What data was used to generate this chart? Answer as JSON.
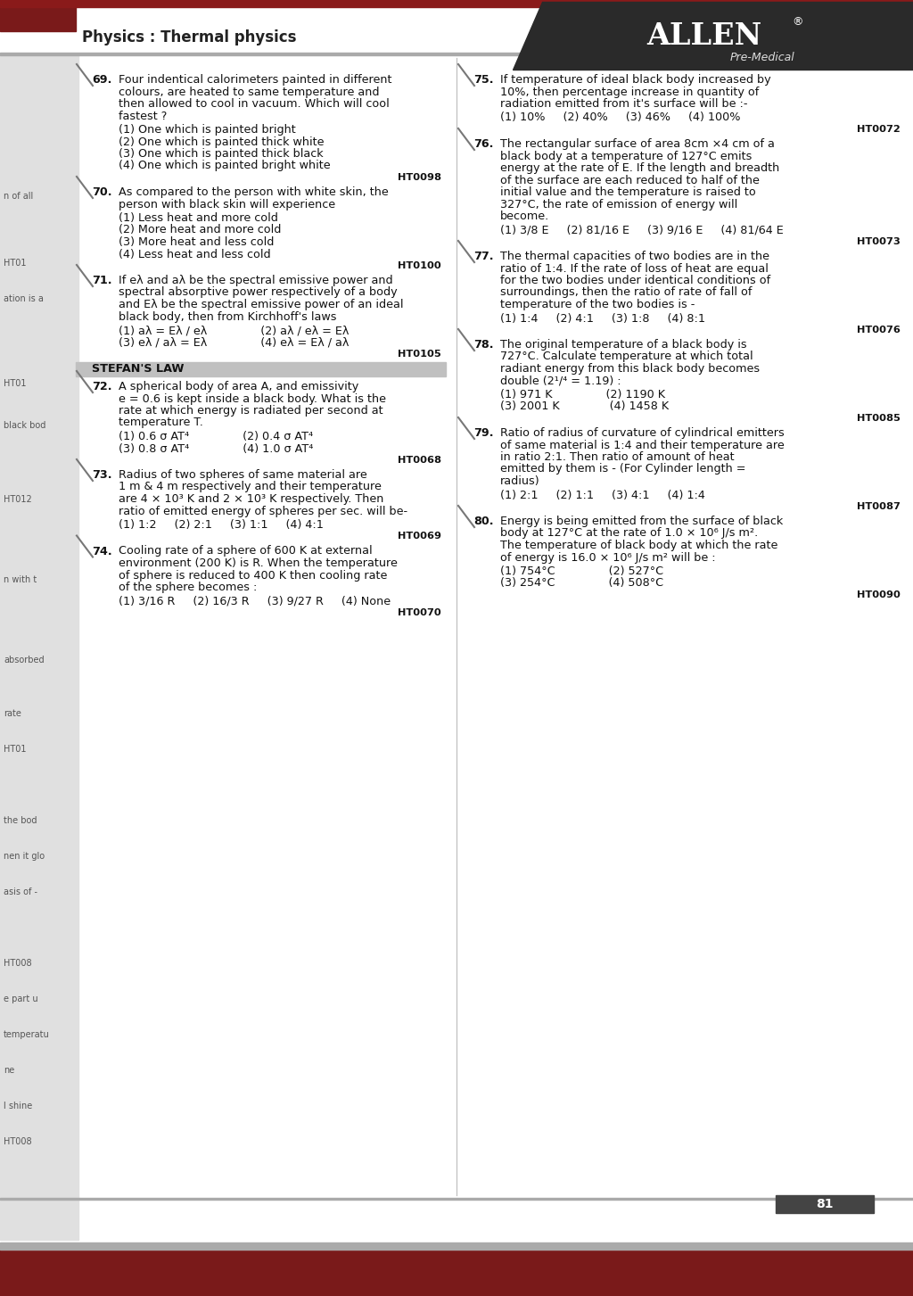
{
  "title": "Physics : Thermal physics",
  "allen_text": "ALLEN",
  "pre_medical": "Pre-Medical",
  "page_number": "81",
  "stefan_law_label": "STEFAN'S LAW",
  "q69_lines": [
    "Four indentical calorimeters painted in different",
    "colours, are heated to same temperature and",
    "then allowed to cool in vacuum. Which will cool",
    "fastest ?"
  ],
  "q69_opts": [
    "(1) One which is painted bright",
    "(2) One which is painted thick white",
    "(3) One which is painted thick black",
    "(4) One which is painted bright white"
  ],
  "q69_code": "HT0098",
  "q70_lines": [
    "As compared to the person with white skin, the",
    "person with black skin will experience"
  ],
  "q70_opts": [
    "(1) Less heat and more cold",
    "(2) More heat and more cold",
    "(3) More heat and less cold",
    "(4) Less heat and less cold"
  ],
  "q70_code": "HT0100",
  "q71_lines": [
    "If eλ and aλ be the spectral emissive power and",
    "spectral absorptive power respectively of a body",
    "and Eλ be the spectral emissive power of an ideal",
    "black body, then from Kirchhoff's laws"
  ],
  "q71_opts": [
    "(1) aλ = Eλ / eλ               (2) aλ / eλ = Eλ",
    "(3) eλ / aλ = Eλ               (4) eλ = Eλ / aλ"
  ],
  "q71_code": "HT0105",
  "q72_lines": [
    "A spherical body of area A, and emissivity",
    "e = 0.6 is kept inside a black body. What is the",
    "rate at which energy is radiated per second at",
    "temperature T."
  ],
  "q72_opts": [
    "(1) 0.6 σ AT⁴               (2) 0.4 σ AT⁴",
    "(3) 0.8 σ AT⁴               (4) 1.0 σ AT⁴"
  ],
  "q72_code": "HT0068",
  "q73_lines": [
    "Radius of two spheres of same material are",
    "1 m & 4 m respectively and their temperature",
    "are 4 × 10³ K and 2 × 10³ K respectively. Then",
    "ratio of emitted energy of spheres per sec. will be-"
  ],
  "q73_opts": [
    "(1) 1:2     (2) 2:1     (3) 1:1     (4) 4:1"
  ],
  "q73_code": "HT0069",
  "q74_lines": [
    "Cooling rate of a sphere of 600 K at external",
    "environment (200 K) is R. When the temperature",
    "of sphere is reduced to 400 K then cooling rate",
    "of the sphere becomes :"
  ],
  "q74_opts": [
    "(1) 3/16 R     (2) 16/3 R     (3) 9/27 R     (4) None"
  ],
  "q74_code": "HT0070",
  "q75_lines": [
    "If temperature of ideal black body increased by",
    "10%, then percentage increase in quantity of",
    "radiation emitted from it's surface will be :-"
  ],
  "q75_opts": [
    "(1) 10%     (2) 40%     (3) 46%     (4) 100%"
  ],
  "q75_code": "HT0072",
  "q76_lines": [
    "The rectangular surface of area 8cm ×4 cm of a",
    "black body at a temperature of 127°C emits",
    "energy at the rate of E. If the length and breadth",
    "of the surface are each reduced to half of the",
    "initial value and the temperature is raised to",
    "327°C, the rate of emission of energy will",
    "become."
  ],
  "q76_opts": [
    "(1) 3/8 E     (2) 81/16 E     (3) 9/16 E     (4) 81/64 E"
  ],
  "q76_code": "HT0073",
  "q77_lines": [
    "The thermal capacities of two bodies are in the",
    "ratio of 1:4. If the rate of loss of heat are equal",
    "for the two bodies under identical conditions of",
    "surroundings, then the ratio of rate of fall of",
    "temperature of the two bodies is -"
  ],
  "q77_opts": [
    "(1) 1:4     (2) 4:1     (3) 1:8     (4) 8:1"
  ],
  "q77_code": "HT0076",
  "q78_lines": [
    "The original temperature of a black body is",
    "727°C. Calculate temperature at which total",
    "radiant energy from this black body becomes",
    "double (2¹/⁴ = 1.19) :"
  ],
  "q78_opts": [
    "(1) 971 K               (2) 1190 K",
    "(3) 2001 K              (4) 1458 K"
  ],
  "q78_code": "HT0085",
  "q79_lines": [
    "Ratio of radius of curvature of cylindrical emitters",
    "of same material is 1:4 and their temperature are",
    "in ratio 2:1. Then ratio of amount of heat",
    "emitted by them is - (For Cylinder length =",
    "radius)"
  ],
  "q79_opts": [
    "(1) 2:1     (2) 1:1     (3) 4:1     (4) 1:4"
  ],
  "q79_code": "HT0087",
  "q80_lines": [
    "Energy is being emitted from the surface of black",
    "body at 127°C at the rate of 1.0 × 10⁶ J/s m².",
    "The temperature of black body at which the rate",
    "of energy is 16.0 × 10⁶ J/s m² will be :"
  ],
  "q80_opts": [
    "(1) 754°C               (2) 527°C",
    "(3) 254°C               (4) 508°C"
  ],
  "q80_code": "HT0090",
  "sidebar_items": [
    [
      "n of all",
      215
    ],
    [
      "HT01",
      290
    ],
    [
      "ation is a",
      330
    ],
    [
      "HT01",
      425
    ],
    [
      "black bod",
      472
    ],
    [
      "HT012",
      555
    ],
    [
      "n with t",
      645
    ],
    [
      "absorbed",
      735
    ],
    [
      "rate",
      795
    ],
    [
      "HT01",
      835
    ],
    [
      "the bod",
      915
    ],
    [
      "nen it glo",
      955
    ],
    [
      "asis of -",
      995
    ],
    [
      "HT008",
      1075
    ],
    [
      "e part u",
      1115
    ],
    [
      "temperatu",
      1155
    ],
    [
      "ne",
      1195
    ],
    [
      "l shine",
      1235
    ],
    [
      "HT008",
      1275
    ]
  ]
}
